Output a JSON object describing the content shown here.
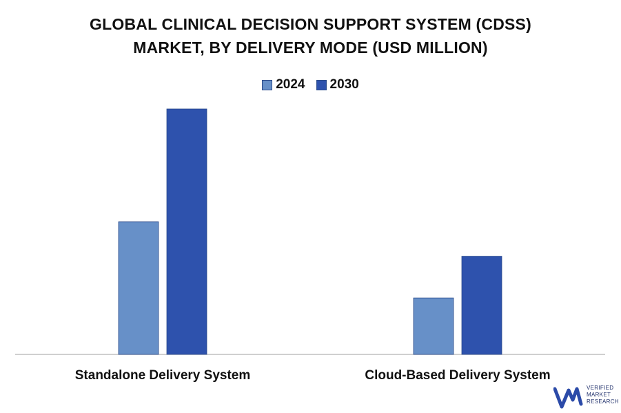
{
  "title_lines": [
    "GLOBAL CLINICAL DECISION SUPPORT SYSTEM (CDSS)",
    "MARKET, BY DELIVERY MODE (USD MILLION)"
  ],
  "colors": {
    "series_2024": "#6790c8",
    "series_2030": "#2e52ad",
    "axis": "#bfbfbf",
    "logo": "#2b4aa8"
  },
  "logo": {
    "line1": "VERIFIED",
    "line2": "MARKET",
    "line3": "RESEARCH",
    "mark": "®"
  },
  "chart_data": {
    "type": "bar",
    "title": "GLOBAL CLINICAL DECISION SUPPORT SYSTEM (CDSS) MARKET, BY DELIVERY MODE (USD MILLION)",
    "categories": [
      "Standalone Delivery System",
      "Cloud-Based Delivery System"
    ],
    "series": [
      {
        "name": "2024",
        "values": [
          54,
          23
        ]
      },
      {
        "name": "2030",
        "values": [
          100,
          40
        ]
      }
    ],
    "ylim": [
      0,
      100
    ],
    "xlabel": "",
    "ylabel": "",
    "grid": false,
    "legend_position": "top-center"
  }
}
